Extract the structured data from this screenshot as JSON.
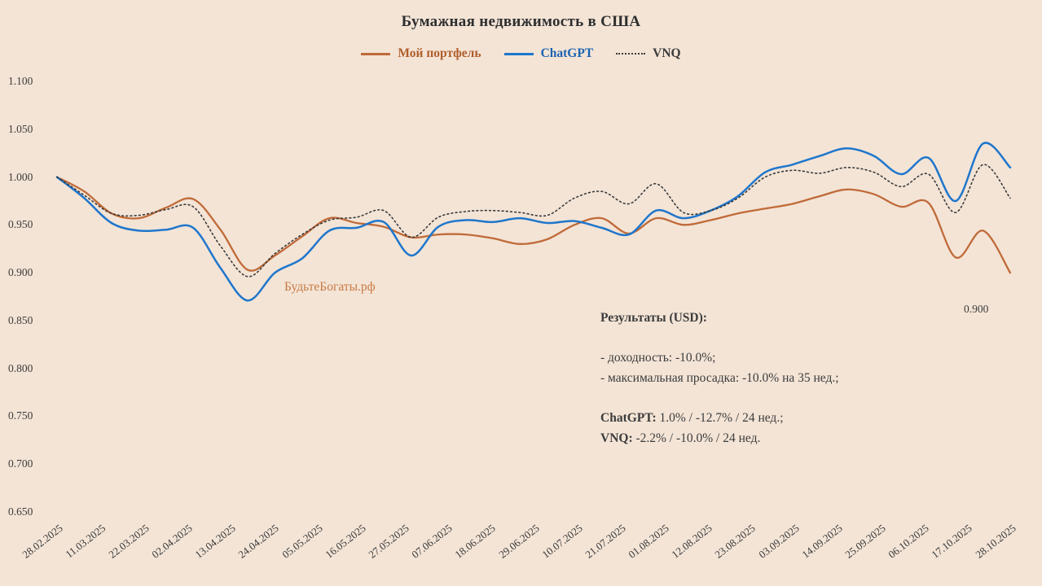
{
  "page": {
    "background": "#f3e4d6"
  },
  "title": "Бумажная недвижимость в США",
  "legend": [
    {
      "key": "portfolio",
      "label": "Мой портфель",
      "color": "#c06a38",
      "text_color": "#b05e2b",
      "style": "solid"
    },
    {
      "key": "chatgpt",
      "label": "ChatGPT",
      "color": "#1f76cc",
      "text_color": "#1c63b0",
      "style": "solid"
    },
    {
      "key": "vnq",
      "label": "VNQ",
      "color": "#3a3a3a",
      "text_color": "#3a3a3a",
      "style": "dotted"
    }
  ],
  "watermark": "БудьтеБогаты.рф",
  "final_value_label": "0.900",
  "results": {
    "heading": "Результаты (USD):",
    "bullet_return": "- доходность: -10.0%;",
    "bullet_drawdown": "- максимальная просадка: -10.0% на 35 нед.;",
    "chatgpt_label": "ChatGPT:",
    "chatgpt_value": " 1.0% / -12.7% / 24 нед.;",
    "vnq_label": "VNQ:",
    "vnq_value": " -2.2% / -10.0% / 24 нед."
  },
  "chart_data": {
    "type": "line",
    "title": "Бумажная недвижимость в США",
    "x_unit": "weekly observations, 28.02.2025 – 28.10.2025",
    "x_tick_labels": [
      "28.02.2025",
      "11.03.2025",
      "22.03.2025",
      "02.04.2025",
      "13.04.2025",
      "24.04.2025",
      "05.05.2025",
      "16.05.2025",
      "27.05.2025",
      "07.06.2025",
      "18.06.2025",
      "29.06.2025",
      "10.07.2025",
      "21.07.2025",
      "01.08.2025",
      "12.08.2025",
      "23.08.2025",
      "03.09.2025",
      "14.09.2025",
      "25.09.2025",
      "06.10.2025",
      "17.10.2025",
      "28.10.2025"
    ],
    "y_tick_labels": [
      "1.100",
      "1.050",
      "1.000",
      "0.950",
      "0.900",
      "0.850",
      "0.800",
      "0.750",
      "0.700",
      "0.650"
    ],
    "ylim": [
      0.65,
      1.1
    ],
    "grid": false,
    "legend_position": "top",
    "series": [
      {
        "name": "Мой портфель",
        "color": "#c06a38",
        "line_style": "solid",
        "width": 2.3,
        "values": [
          1.0,
          0.985,
          0.962,
          0.957,
          0.968,
          0.977,
          0.945,
          0.903,
          0.918,
          0.938,
          0.957,
          0.952,
          0.948,
          0.937,
          0.94,
          0.94,
          0.936,
          0.93,
          0.935,
          0.95,
          0.957,
          0.941,
          0.957,
          0.95,
          0.955,
          0.962,
          0.967,
          0.972,
          0.98,
          0.987,
          0.982,
          0.969,
          0.973,
          0.916,
          0.944,
          0.9
        ]
      },
      {
        "name": "ChatGPT",
        "color": "#1f76cc",
        "line_style": "solid",
        "width": 2.5,
        "values": [
          1.0,
          0.978,
          0.952,
          0.944,
          0.945,
          0.947,
          0.905,
          0.871,
          0.9,
          0.915,
          0.944,
          0.947,
          0.953,
          0.918,
          0.948,
          0.955,
          0.953,
          0.957,
          0.952,
          0.954,
          0.947,
          0.94,
          0.965,
          0.957,
          0.965,
          0.98,
          1.005,
          1.013,
          1.022,
          1.03,
          1.022,
          1.003,
          1.02,
          0.975,
          1.035,
          1.01
        ]
      },
      {
        "name": "VNQ",
        "color": "#3a3a3a",
        "line_style": "dotted",
        "width": 1.6,
        "values": [
          1.0,
          0.981,
          0.962,
          0.96,
          0.966,
          0.969,
          0.928,
          0.896,
          0.92,
          0.94,
          0.955,
          0.958,
          0.965,
          0.937,
          0.958,
          0.964,
          0.965,
          0.963,
          0.96,
          0.978,
          0.985,
          0.972,
          0.993,
          0.963,
          0.965,
          0.978,
          1.0,
          1.007,
          1.004,
          1.01,
          1.005,
          0.99,
          1.003,
          0.963,
          1.013,
          0.978
        ]
      }
    ],
    "annotations": [
      {
        "text": "0.900",
        "note": "final value of Мой портфель at 28.10.2025"
      },
      {
        "text": "БудьтеБогаты.рф",
        "note": "watermark"
      }
    ]
  }
}
